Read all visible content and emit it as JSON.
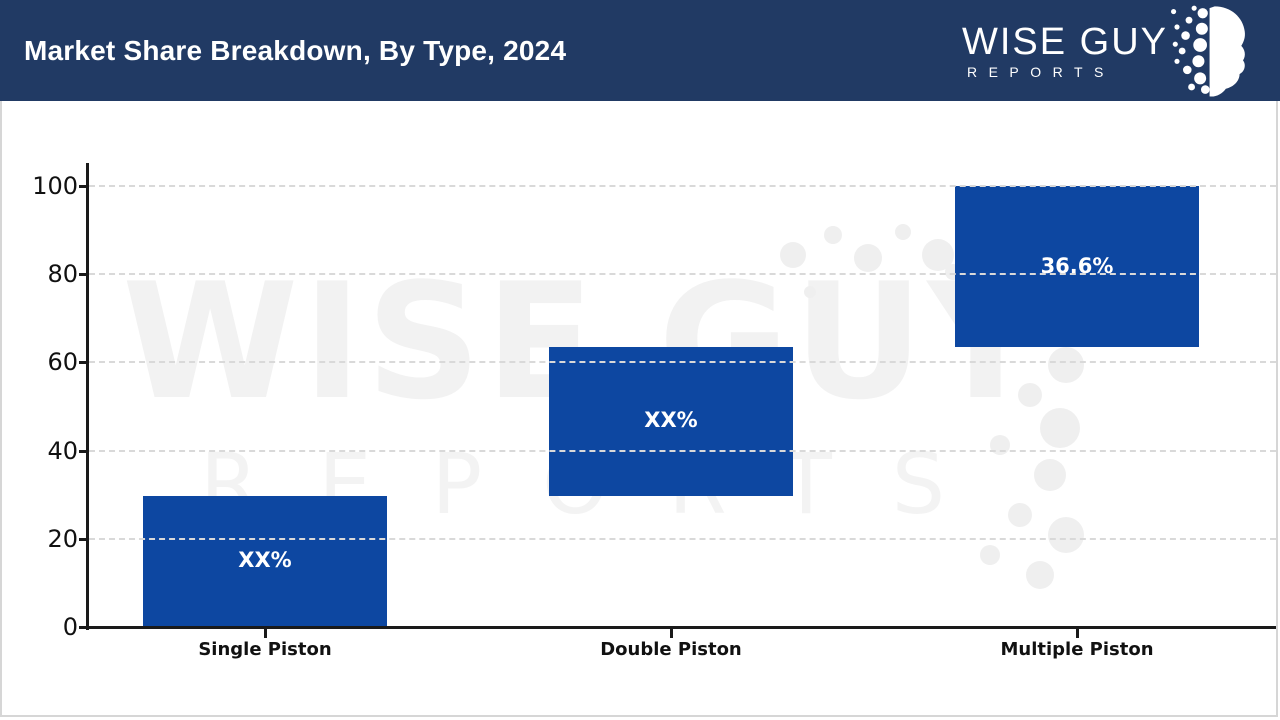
{
  "header": {
    "title": "Market Share Breakdown, By Type, 2024",
    "logo": {
      "wordmark": "WISE GUY",
      "subtitle": "REPORTS"
    }
  },
  "watermark": {
    "wordmark": "WISE GUY",
    "subtitle": "REPORTS"
  },
  "chart_data": {
    "type": "bar",
    "subtype": "floating-waterfall",
    "title": "Market Share Breakdown, By Type, 2024",
    "categories": [
      "Single Piston",
      "Double Piston",
      "Multiple Piston"
    ],
    "bars": [
      {
        "category": "Single Piston",
        "start": 0,
        "end": 29.8,
        "label": "XX%"
      },
      {
        "category": "Double Piston",
        "start": 29.8,
        "end": 63.4,
        "label": "XX%"
      },
      {
        "category": "Multiple Piston",
        "start": 63.4,
        "end": 100,
        "label": "36.6%"
      }
    ],
    "xlabel": "",
    "ylabel": "",
    "ylim": [
      0,
      105
    ],
    "yticks": [
      0,
      20,
      40,
      60,
      80,
      100
    ],
    "grid": "horizontal-dashed",
    "legend": "none",
    "colors": {
      "bar": "#0d47a1",
      "bar_label": "#ffffff",
      "header_bg": "#213a64",
      "grid": "#d9d9d9",
      "axis": "#1a1a1a",
      "watermark": "#f2f2f2"
    }
  }
}
